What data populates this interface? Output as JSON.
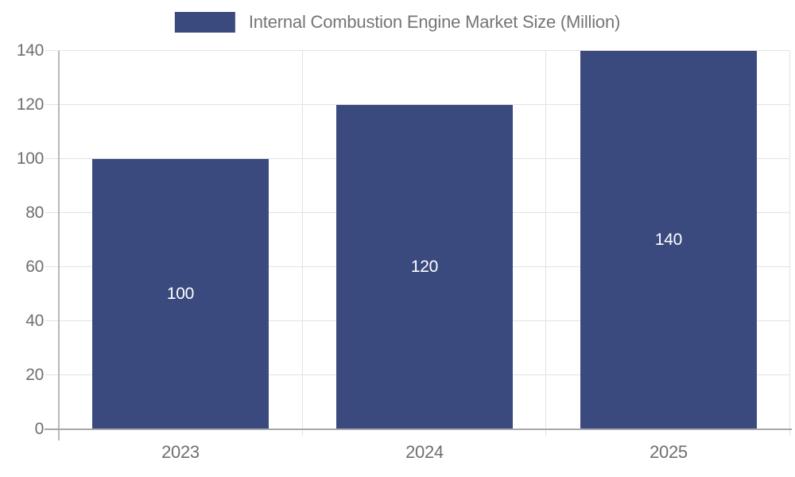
{
  "legend": {
    "label": "Internal Combustion Engine Market Size (Million)"
  },
  "chart_data": {
    "type": "bar",
    "title": "Internal Combustion Engine Market Size (Million)",
    "categories": [
      "2023",
      "2024",
      "2025"
    ],
    "series": [
      {
        "name": "Internal Combustion Engine Market Size (Million)",
        "values": [
          100,
          120,
          140
        ]
      }
    ],
    "bar_labels": [
      "100",
      "120",
      "140"
    ],
    "xlabel": "",
    "ylabel": "",
    "ylim": [
      0,
      140
    ],
    "yticks": [
      0,
      20,
      40,
      60,
      80,
      100,
      120,
      140
    ],
    "grid": true,
    "legend_position": "top-center"
  },
  "colors": {
    "bar": "#3A4A7E",
    "grid": "#E2E2E2",
    "axis_line": "#A8A8A8",
    "y_spine": "#B4BAC1",
    "tick_text": "#6F6F6F",
    "legend_text": "#757575",
    "bar_label_text": "#FFFFFF"
  }
}
